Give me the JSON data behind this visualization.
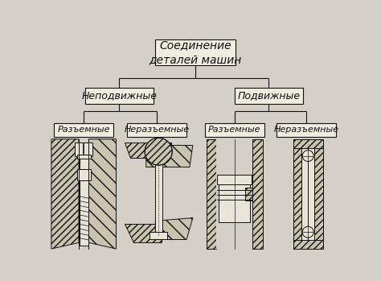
{
  "bg_color": "#d4d0c8",
  "box_color": "#f0ece0",
  "box_edge_color": "#111111",
  "line_color": "#111111",
  "text_color": "#111111",
  "title": "Соединение\nдеталей машин",
  "level1": [
    "Неподвижные",
    "Подвижные"
  ],
  "level2": [
    "Разъемные",
    "Неразъемные",
    "Разъемные",
    "Неразъемные"
  ],
  "title_fontsize": 10,
  "level1_fontsize": 9,
  "level2_fontsize": 8,
  "figsize": [
    4.74,
    3.49
  ],
  "dpi": 100
}
